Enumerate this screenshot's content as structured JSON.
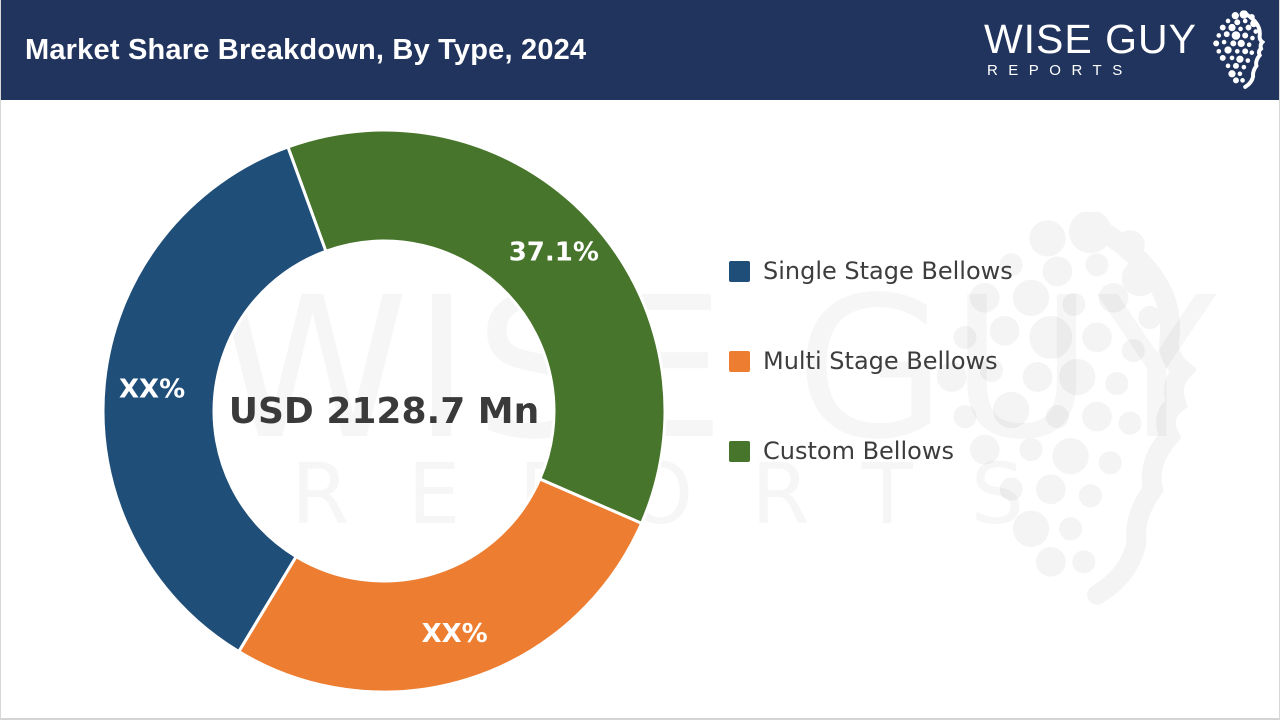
{
  "header": {
    "title": "Market Share Breakdown, By Type, 2024",
    "bg_color": "#21345E",
    "logo": {
      "line1": "WISE GUY",
      "line2": "REPORTS"
    }
  },
  "chart_data": {
    "type": "pie",
    "subtype": "donut",
    "title": "Market Share Breakdown, By Type, 2024",
    "center_label": "USD 2128.7 Mn",
    "start_angle_deg": -20,
    "direction": "clockwise",
    "legend_position": "right",
    "series": [
      {
        "name": "Custom Bellows",
        "value": 37.1,
        "display_label": "37.1%",
        "color": "#47752B"
      },
      {
        "name": "Multi Stage Bellows",
        "value": 27.1,
        "display_label": "XX%",
        "color": "#ED7D31"
      },
      {
        "name": "Single Stage Bellows",
        "value": 35.8,
        "display_label": "XX%",
        "color": "#1F4E79"
      }
    ]
  },
  "legend": {
    "items": [
      {
        "label": "Single Stage Bellows",
        "color": "#1F4E79"
      },
      {
        "label": "Multi Stage Bellows",
        "color": "#ED7D31"
      },
      {
        "label": "Custom Bellows",
        "color": "#47752B"
      }
    ]
  },
  "watermark": {
    "line1": "WISE GUY",
    "line2": "REPORTS"
  }
}
